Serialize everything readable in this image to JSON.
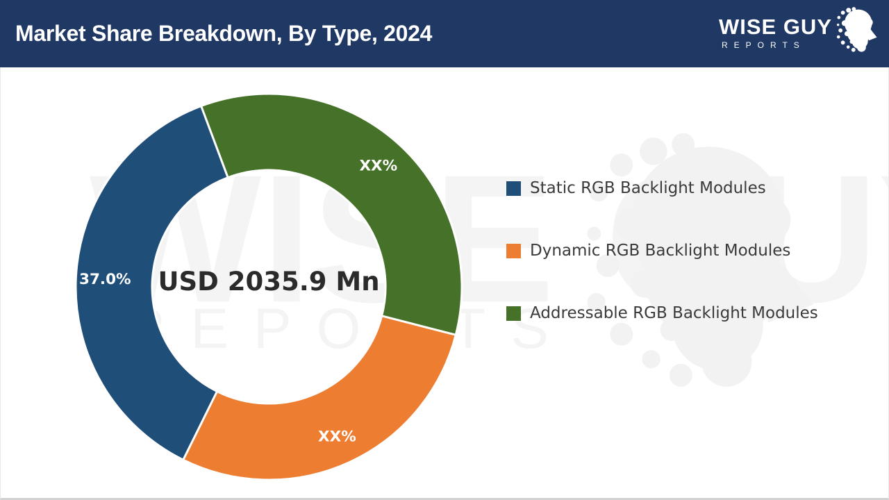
{
  "header": {
    "title": "Market Share Breakdown, By Type, 2024"
  },
  "logo": {
    "line1": "WISE GUY",
    "line2": "REPORTS"
  },
  "watermark": {
    "line1": "WISE GUY",
    "line2": "REPORTS"
  },
  "chart_data": {
    "type": "pie",
    "subtype": "donut",
    "title": "Market Share Breakdown, By Type, 2024",
    "center_label": "USD 2035.9 Mn",
    "start_angle_deg": 110.5,
    "counterclockwise": true,
    "inner_radius_ratio": 0.6,
    "legend_position": "right",
    "series": [
      {
        "name": "Static RGB Backlight Modules",
        "value": 37.0,
        "display_label": "37.0%",
        "color": "#1f4e79"
      },
      {
        "name": "Dynamic RGB Backlight Modules",
        "value": 28.3,
        "display_label": "XX%",
        "color": "#ed7d31"
      },
      {
        "name": "Addressable RGB Backlight Modules",
        "value": 34.7,
        "display_label": "XX%",
        "color": "#457228"
      }
    ]
  }
}
